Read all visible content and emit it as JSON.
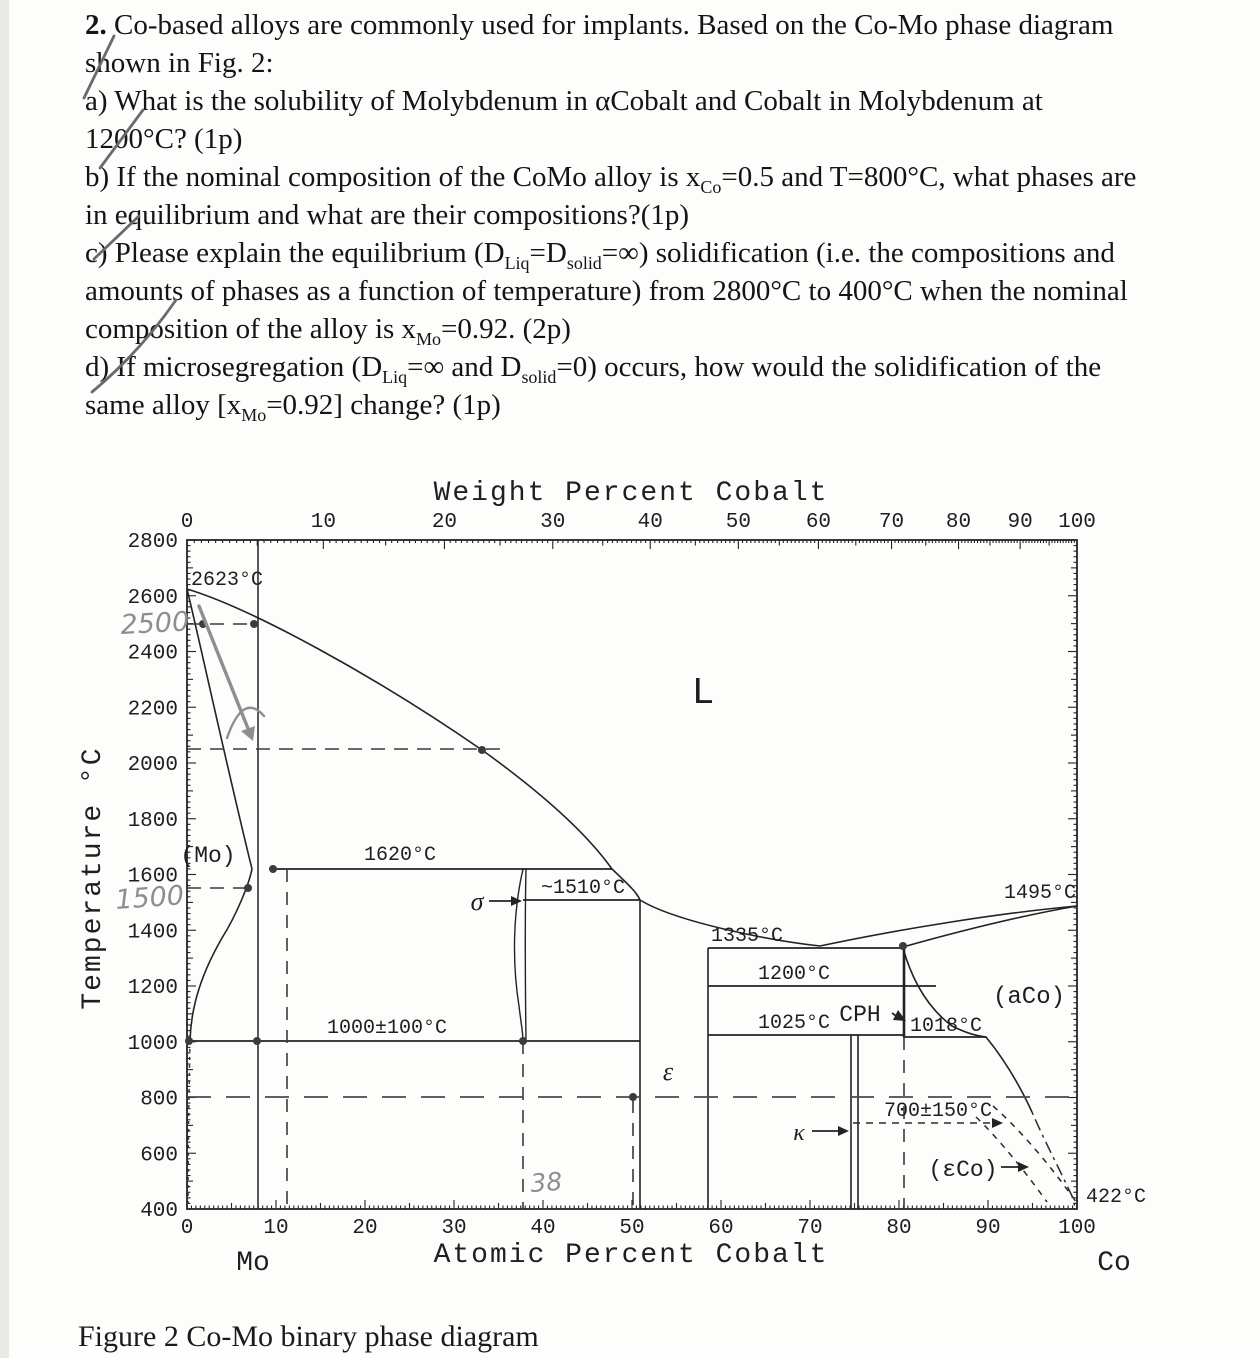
{
  "problem": {
    "lines": [
      {
        "segments": [
          {
            "t": "2. ",
            "b": true
          },
          {
            "t": "Co-based alloys are commonly used for implants. Based on the Co-Mo phase diagram"
          }
        ]
      },
      {
        "segments": [
          {
            "t": "shown in Fig. 2:"
          }
        ]
      },
      {
        "segments": [
          {
            "t": "a) What is the solubility of Molybdenum in αCobalt and Cobalt in Molybdenum at"
          }
        ]
      },
      {
        "segments": [
          {
            "t": "1200°C? (1p)"
          }
        ]
      },
      {
        "segments": [
          {
            "t": "b) If the nominal composition of the CoMo alloy is x"
          },
          {
            "t": "Co",
            "sub": true
          },
          {
            "t": "=0.5 and T=800°C, what phases are"
          }
        ]
      },
      {
        "segments": [
          {
            "t": "in equilibrium and what are their compositions?(1p)"
          }
        ]
      },
      {
        "segments": [
          {
            "t": "c) Please explain the equilibrium (D"
          },
          {
            "t": "Liq",
            "sub": true
          },
          {
            "t": "=D"
          },
          {
            "t": "solid",
            "sub": true
          },
          {
            "t": "=∞) solidification (i.e. the compositions and"
          }
        ]
      },
      {
        "segments": [
          {
            "t": "amounts of phases as a function of temperature) from 2800°C to 400°C when the nominal"
          }
        ]
      },
      {
        "segments": [
          {
            "t": "composition of the alloy is x"
          },
          {
            "t": "Mo",
            "sub": true
          },
          {
            "t": "=0.92. (2p)"
          }
        ]
      },
      {
        "segments": [
          {
            "t": "d) If microsegregation (D"
          },
          {
            "t": "Liq",
            "sub": true
          },
          {
            "t": "=∞ and D"
          },
          {
            "t": "solid",
            "sub": true
          },
          {
            "t": "=0) occurs, how would the solidification of the"
          }
        ]
      },
      {
        "segments": [
          {
            "t": "same alloy [x"
          },
          {
            "t": "Mo",
            "sub": true
          },
          {
            "t": "=0.92] change? (1p)"
          }
        ]
      }
    ]
  },
  "figure": {
    "caption": "Figure 2 Co-Mo binary phase diagram",
    "axes": {
      "top": {
        "title": "Weight Percent Cobalt",
        "tick_labels": [
          "0",
          "10",
          "20",
          "30",
          "40",
          "50",
          "60",
          "70",
          "80",
          "90",
          "100"
        ]
      },
      "bottom": {
        "title": "Atomic Percent Cobalt",
        "left_end": "Mo",
        "right_end": "Co",
        "tick_labels": [
          "0",
          "10",
          "20",
          "30",
          "40",
          "50",
          "60",
          "70",
          "80",
          "90",
          "100"
        ]
      },
      "left": {
        "title": "Temperature °C",
        "tick_labels": [
          "2800",
          "2600",
          "2400",
          "2200",
          "2000",
          "1800",
          "1600",
          "1400",
          "1200",
          "1000",
          "800",
          "600",
          "400"
        ]
      }
    },
    "labels": {
      "melting_mo": "2623°C",
      "e1620": "1620°C",
      "t1510": "~1510°C",
      "t1335": "1335°C",
      "t1200": "1200°C",
      "t1025": "1025°C",
      "t1018": "1018°C",
      "t1495": "1495°C",
      "t1000": "1000±100°C",
      "t700": "700±150°C",
      "t422": "422°C",
      "L": "L",
      "Mo_phase": "(Mo)",
      "sigma": "σ",
      "epsilon": "ε",
      "kappa": "κ",
      "cph": "CPH",
      "aCo": "(aCo)",
      "eCo": "(εCo)"
    },
    "handwritten": {
      "hw2500": "2500",
      "hw1500": "1500",
      "hw38": "38"
    }
  },
  "chart_data": {
    "type": "line",
    "title": "Co-Mo binary phase diagram",
    "x_bottom": {
      "label": "Atomic Percent Cobalt",
      "range": [
        0,
        100
      ]
    },
    "x_top": {
      "label": "Weight Percent Cobalt",
      "range": [
        0,
        100
      ],
      "note": "nonlinear mapping onto atomic percent scale"
    },
    "ylabel": "Temperature °C",
    "ylim": [
      400,
      2800
    ],
    "invariants_C": {
      "Mo_melting": 2623,
      "Co_melting": 1495,
      "eutectic_Mo_side": 1620,
      "peritectic_sigma": "~1510",
      "eutectic_Co_side": 1335,
      "line_1200": 1200,
      "line_1025": 1025,
      "line_1018": 1018,
      "sigma_decomposition": "1000±100",
      "kappa_reaction": "700±150",
      "Co_allotropic": 422
    },
    "phases": [
      "L",
      "(Mo)",
      "σ",
      "ε",
      "κ",
      "CPH",
      "(aCo)",
      "(εCo)"
    ],
    "series": [
      {
        "name": "liquidus Mo side",
        "points": [
          [
            0,
            2623
          ],
          [
            7.5,
            2500
          ],
          [
            33,
            2050
          ],
          [
            47.5,
            1620
          ]
        ]
      },
      {
        "name": "(Mo) solidus",
        "points": [
          [
            0,
            2623
          ],
          [
            1.8,
            2500
          ],
          [
            7.3,
            1620
          ]
        ]
      },
      {
        "name": "(Mo) solvus",
        "points": [
          [
            7.3,
            1620
          ],
          [
            6.8,
            1550
          ],
          [
            0.4,
            1000
          ],
          [
            0.2,
            400
          ]
        ]
      },
      {
        "name": "eutectic line 1620C",
        "points": [
          [
            9.7,
            1620
          ],
          [
            47.5,
            1620
          ]
        ]
      },
      {
        "name": "sigma phase ~38 at% Co",
        "points": [
          [
            37.8,
            1620
          ],
          [
            37.8,
            1000
          ]
        ]
      },
      {
        "name": "peritectic line ~1510C",
        "points": [
          [
            37.8,
            1510
          ],
          [
            50.9,
            1510
          ]
        ]
      },
      {
        "name": "eutectoid line 1000±100C",
        "points": [
          [
            0,
            1000
          ],
          [
            50.9,
            1000
          ]
        ]
      },
      {
        "name": "liquidus middle",
        "points": [
          [
            47.5,
            1620
          ],
          [
            50.9,
            1510
          ],
          [
            71,
            1340
          ]
        ]
      },
      {
        "name": "liquidus Co side",
        "points": [
          [
            71,
            1340
          ],
          [
            100,
            1495
          ]
        ]
      },
      {
        "name": "(aCo) solidus",
        "points": [
          [
            80.4,
            1340
          ],
          [
            100,
            1495
          ]
        ]
      },
      {
        "name": "eutectic line 1335C",
        "points": [
          [
            58.5,
            1335
          ],
          [
            80.4,
            1335
          ]
        ]
      },
      {
        "name": "line 1200C",
        "points": [
          [
            58.5,
            1200
          ],
          [
            84,
            1200
          ]
        ]
      },
      {
        "name": "line 1025C",
        "points": [
          [
            58.5,
            1025
          ],
          [
            80.5,
            1025
          ]
        ]
      },
      {
        "name": "line 1018C",
        "points": [
          [
            80.5,
            1018
          ],
          [
            89.8,
            1018
          ]
        ]
      },
      {
        "name": "epsilon phase field edges",
        "points": [
          [
            50.9,
            400
          ],
          [
            50.9,
            1510
          ],
          [
            58.5,
            1335
          ],
          [
            58.5,
            400
          ]
        ]
      },
      {
        "name": "kappa phase ~75 at% Co",
        "points": [
          [
            74.6,
            1025
          ],
          [
            74.6,
            400
          ],
          [
            75.4,
            1025
          ],
          [
            75.4,
            400
          ]
        ]
      },
      {
        "name": "CPH line ~81 at% Co",
        "points": [
          [
            80.5,
            1340
          ],
          [
            80.5,
            1018
          ]
        ]
      },
      {
        "name": "(aCo) solvus",
        "points": [
          [
            80.4,
            1335
          ],
          [
            84,
            1200
          ],
          [
            86,
            1030
          ],
          [
            89.8,
            1018
          ],
          [
            95,
            750
          ],
          [
            99.7,
            422
          ]
        ]
      },
      {
        "name": "(eCo) transformation dashed",
        "points": [
          [
            90.5,
            750
          ],
          [
            100,
            422
          ]
        ]
      },
      {
        "name": "700±150C dashed line",
        "points": [
          [
            75,
            700
          ],
          [
            91,
            700
          ]
        ]
      }
    ],
    "dashed_construction": {
      "horizontal_T": [
        2500,
        2050,
        1550,
        800
      ],
      "vertical_at_pct": [
        8,
        11,
        38,
        50,
        81
      ]
    },
    "marked_points": [
      [
        1.8,
        2500
      ],
      [
        7.5,
        2500
      ],
      [
        33,
        2050
      ],
      [
        6.9,
        1550
      ],
      [
        9.7,
        1620
      ],
      [
        0.3,
        1000
      ],
      [
        8,
        1000
      ],
      [
        37.8,
        1000
      ],
      [
        50,
        800
      ],
      [
        80.4,
        1340
      ]
    ],
    "legend_position": "none",
    "grid": false
  }
}
